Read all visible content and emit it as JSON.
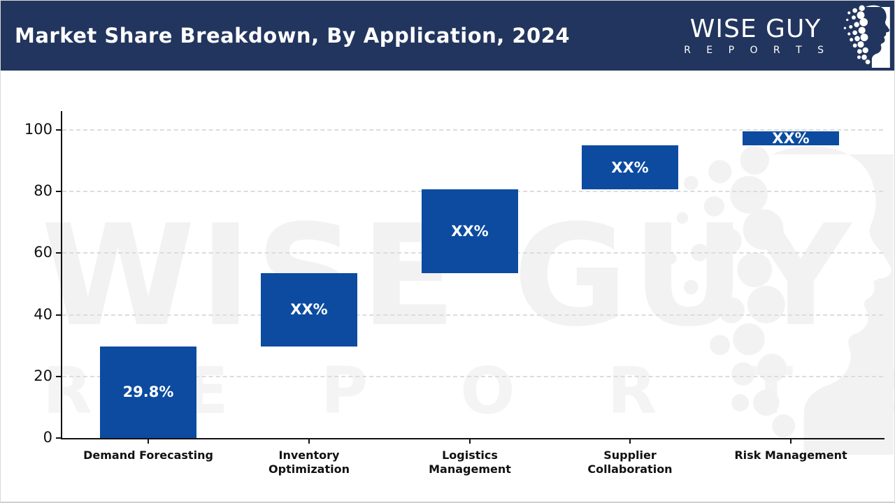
{
  "header": {
    "title": "Market Share Breakdown, By Application, 2024",
    "logo": {
      "line1": "WISE GUY",
      "line2": "R E P O R T S"
    }
  },
  "watermark": {
    "line1": "WISE GUY",
    "line2": "R E P O R T S"
  },
  "colors": {
    "header_bg": "#22355E",
    "bar": "#0C4BA0",
    "grid": "#DCDCDC",
    "axis": "#111111",
    "value_label": "#FFFFFF",
    "watermark": "#F2F2F2"
  },
  "chart_data": {
    "type": "bar",
    "subtype": "waterfall",
    "title": "Market Share Breakdown, By Application, 2024",
    "categories": [
      "Demand Forecasting",
      "Inventory\nOptimization",
      "Logistics\nManagement",
      "Supplier\nCollaboration",
      "Risk Management"
    ],
    "bars": [
      {
        "category": "Demand Forecasting",
        "start": 0,
        "end": 29.8,
        "label": "29.8%"
      },
      {
        "category": "Inventory Optimization",
        "start": 29.8,
        "end": 53.6,
        "label": "XX%"
      },
      {
        "category": "Logistics Management",
        "start": 53.6,
        "end": 80.8,
        "label": "XX%"
      },
      {
        "category": "Supplier Collaboration",
        "start": 80.8,
        "end": 94.9,
        "label": "XX%"
      },
      {
        "category": "Risk Management",
        "start": 94.9,
        "end": 99.5,
        "label": "XX%"
      }
    ],
    "yticks": [
      0,
      20,
      40,
      60,
      80,
      100
    ],
    "ylim": [
      0,
      100
    ],
    "xlabel": "",
    "ylabel": "",
    "grid": "horizontal-dashed",
    "legend": "none"
  }
}
